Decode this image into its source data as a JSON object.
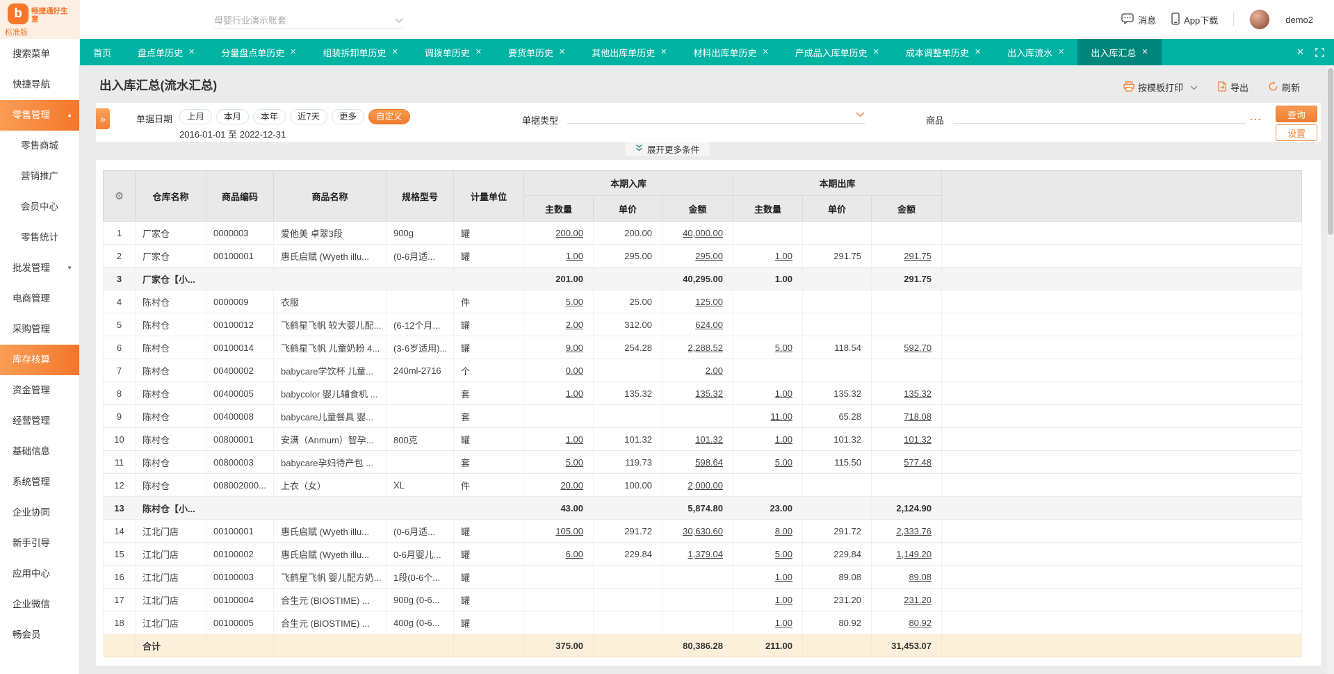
{
  "topbar": {
    "logo_title": "畅捷通好生意",
    "logo_badge": "标准版",
    "logo_letter": "b",
    "account_select_value": "母婴行业演示账套",
    "messages_label": "消息",
    "app_download_label": "App下载",
    "username": "demo2"
  },
  "tabs": [
    {
      "label": "首页",
      "closable": false,
      "active": false
    },
    {
      "label": "盘点单历史",
      "closable": true,
      "active": false
    },
    {
      "label": "分量盘点单历史",
      "closable": true,
      "active": false
    },
    {
      "label": "组装拆卸单历史",
      "closable": true,
      "active": false
    },
    {
      "label": "调拨单历史",
      "closable": true,
      "active": false
    },
    {
      "label": "要货单历史",
      "closable": true,
      "active": false
    },
    {
      "label": "其他出库单历史",
      "closable": true,
      "active": false
    },
    {
      "label": "材料出库单历史",
      "closable": true,
      "active": false
    },
    {
      "label": "产成品入库单历史",
      "closable": true,
      "active": false
    },
    {
      "label": "成本调整单历史",
      "closable": true,
      "active": false
    },
    {
      "label": "出入库流水",
      "closable": true,
      "active": false
    },
    {
      "label": "出入库汇总",
      "closable": true,
      "active": true
    }
  ],
  "sidebar": {
    "items": [
      {
        "label": "搜索菜单",
        "kind": "main"
      },
      {
        "label": "快捷导航",
        "kind": "main"
      },
      {
        "label": "零售管理",
        "kind": "expanded",
        "arrow": "up"
      },
      {
        "label": "零售商城",
        "kind": "sub"
      },
      {
        "label": "营销推广",
        "kind": "sub"
      },
      {
        "label": "会员中心",
        "kind": "sub"
      },
      {
        "label": "零售统计",
        "kind": "sub"
      },
      {
        "label": "批发管理",
        "kind": "main",
        "arrow": "down"
      },
      {
        "label": "电商管理",
        "kind": "main"
      },
      {
        "label": "采购管理",
        "kind": "main"
      },
      {
        "label": "库存核算",
        "kind": "active"
      },
      {
        "label": "资金管理",
        "kind": "main"
      },
      {
        "label": "经营管理",
        "kind": "main"
      },
      {
        "label": "基础信息",
        "kind": "main"
      },
      {
        "label": "系统管理",
        "kind": "main"
      },
      {
        "label": "企业协同",
        "kind": "main"
      },
      {
        "label": "新手引导",
        "kind": "main"
      },
      {
        "label": "应用中心",
        "kind": "main"
      },
      {
        "label": "企业微信",
        "kind": "main"
      },
      {
        "label": "畅会员",
        "kind": "main"
      }
    ]
  },
  "page": {
    "title": "出入库汇总(流水汇总)",
    "toolbar": {
      "print_label": "按模板打印",
      "export_label": "导出",
      "refresh_label": "刷新"
    }
  },
  "filters": {
    "date_label": "单据日期",
    "date_pills": [
      "上月",
      "本月",
      "本年",
      "近7天",
      "更多"
    ],
    "custom_pill": "自定义",
    "date_range": "2016-01-01 至 2022-12-31",
    "doc_type_label": "单据类型",
    "product_label": "商品",
    "more_dots": "...",
    "search_button": "查询",
    "settings_button": "设置",
    "expand_more": "展开更多条件"
  },
  "table": {
    "headers": [
      "仓库名称",
      "商品编码",
      "商品名称",
      "规格型号",
      "计量单位"
    ],
    "group_in": "本期入库",
    "group_out": "本期出库",
    "sub_headers": [
      "主数量",
      "单价",
      "金额"
    ],
    "rows": [
      {
        "n": "1",
        "warehouse": "厂家仓",
        "code": "0000003",
        "name": "爱他美 卓翠3段",
        "spec": "900g",
        "unit": "罐",
        "in": [
          "200.00",
          "200.00",
          "40,000.00"
        ],
        "out": [
          "",
          "",
          ""
        ],
        "kind": "data"
      },
      {
        "n": "2",
        "warehouse": "厂家仓",
        "code": "00100001",
        "name": "惠氏启赋 (Wyeth illu...",
        "spec": "(0-6月适...",
        "unit": "罐",
        "in": [
          "1.00",
          "295.00",
          "295.00"
        ],
        "out": [
          "1.00",
          "291.75",
          "291.75"
        ],
        "kind": "data"
      },
      {
        "n": "3",
        "warehouse": "厂家仓【小...",
        "code": "",
        "name": "",
        "spec": "",
        "unit": "",
        "in": [
          "201.00",
          "",
          "40,295.00"
        ],
        "out": [
          "1.00",
          "",
          "291.75"
        ],
        "kind": "summary"
      },
      {
        "n": "4",
        "warehouse": "陈村仓",
        "code": "0000009",
        "name": "衣服",
        "spec": "",
        "unit": "件",
        "in": [
          "5.00",
          "25.00",
          "125.00"
        ],
        "out": [
          "",
          "",
          ""
        ],
        "kind": "data"
      },
      {
        "n": "5",
        "warehouse": "陈村仓",
        "code": "00100012",
        "name": "飞鹤星飞帆 较大婴儿配...",
        "spec": "(6-12个月...",
        "unit": "罐",
        "in": [
          "2.00",
          "312.00",
          "624.00"
        ],
        "out": [
          "",
          "",
          ""
        ],
        "kind": "data"
      },
      {
        "n": "6",
        "warehouse": "陈村仓",
        "code": "00100014",
        "name": "飞鹤星飞帆 儿童奶粉 4...",
        "spec": "(3-6岁适用)...",
        "unit": "罐",
        "in": [
          "9.00",
          "254.28",
          "2,288.52"
        ],
        "out": [
          "5.00",
          "118.54",
          "592.70"
        ],
        "kind": "data"
      },
      {
        "n": "7",
        "warehouse": "陈村仓",
        "code": "00400002",
        "name": "babycare学饮杯 儿童...",
        "spec": "240ml-2716",
        "unit": "个",
        "in": [
          "0.00",
          "",
          "2.00"
        ],
        "out": [
          "",
          "",
          ""
        ],
        "kind": "data"
      },
      {
        "n": "8",
        "warehouse": "陈村仓",
        "code": "00400005",
        "name": "babycolor 婴儿辅食机 ...",
        "spec": "",
        "unit": "套",
        "in": [
          "1.00",
          "135.32",
          "135.32"
        ],
        "out": [
          "1.00",
          "135.32",
          "135.32"
        ],
        "kind": "data"
      },
      {
        "n": "9",
        "warehouse": "陈村仓",
        "code": "00400008",
        "name": "babycare儿童餐具 婴...",
        "spec": "",
        "unit": "套",
        "in": [
          "",
          "",
          ""
        ],
        "out": [
          "11.00",
          "65.28",
          "718.08"
        ],
        "kind": "data"
      },
      {
        "n": "10",
        "warehouse": "陈村仓",
        "code": "00800001",
        "name": "安满（Anmum）智孕...",
        "spec": "800克",
        "unit": "罐",
        "in": [
          "1.00",
          "101.32",
          "101.32"
        ],
        "out": [
          "1.00",
          "101.32",
          "101.32"
        ],
        "kind": "data"
      },
      {
        "n": "11",
        "warehouse": "陈村仓",
        "code": "00800003",
        "name": "babycare孕妇待产包 ...",
        "spec": "",
        "unit": "套",
        "in": [
          "5.00",
          "119.73",
          "598.64"
        ],
        "out": [
          "5.00",
          "115.50",
          "577.48"
        ],
        "kind": "data"
      },
      {
        "n": "12",
        "warehouse": "陈村仓",
        "code": "008002000...",
        "name": "上衣（女）",
        "spec": "XL",
        "unit": "件",
        "in": [
          "20.00",
          "100.00",
          "2,000.00"
        ],
        "out": [
          "",
          "",
          ""
        ],
        "kind": "data"
      },
      {
        "n": "13",
        "warehouse": "陈村仓【小...",
        "code": "",
        "name": "",
        "spec": "",
        "unit": "",
        "in": [
          "43.00",
          "",
          "5,874.80"
        ],
        "out": [
          "23.00",
          "",
          "2,124.90"
        ],
        "kind": "summary"
      },
      {
        "n": "14",
        "warehouse": "江北门店",
        "code": "00100001",
        "name": "惠氏启赋 (Wyeth illu...",
        "spec": "(0-6月适...",
        "unit": "罐",
        "in": [
          "105.00",
          "291.72",
          "30,630.60"
        ],
        "out": [
          "8.00",
          "291.72",
          "2,333.76"
        ],
        "kind": "data"
      },
      {
        "n": "15",
        "warehouse": "江北门店",
        "code": "00100002",
        "name": "惠氏启赋 (Wyeth illu...",
        "spec": "0-6月婴儿...",
        "unit": "罐",
        "in": [
          "6.00",
          "229.84",
          "1,379.04"
        ],
        "out": [
          "5.00",
          "229.84",
          "1,149.20"
        ],
        "kind": "data"
      },
      {
        "n": "16",
        "warehouse": "江北门店",
        "code": "00100003",
        "name": "飞鹤星飞帆 婴儿配方奶...",
        "spec": "1段(0-6个...",
        "unit": "罐",
        "in": [
          "",
          "",
          ""
        ],
        "out": [
          "1.00",
          "89.08",
          "89.08"
        ],
        "kind": "data"
      },
      {
        "n": "17",
        "warehouse": "江北门店",
        "code": "00100004",
        "name": "合生元 (BIOSTIME) ...",
        "spec": "900g (0-6...",
        "unit": "罐",
        "in": [
          "",
          "",
          ""
        ],
        "out": [
          "1.00",
          "231.20",
          "231.20"
        ],
        "kind": "data"
      },
      {
        "n": "18",
        "warehouse": "江北门店",
        "code": "00100005",
        "name": "合生元 (BIOSTIME) ...",
        "spec": "400g (0-6...",
        "unit": "罐",
        "in": [
          "",
          "",
          ""
        ],
        "out": [
          "1.00",
          "80.92",
          "80.92"
        ],
        "kind": "data"
      }
    ],
    "total": {
      "label": "合计",
      "in": [
        "375.00",
        "",
        "80,386.28"
      ],
      "out": [
        "211.00",
        "",
        "31,453.07"
      ]
    }
  },
  "colors": {
    "teal": "#00b3a3",
    "teal_active_tab": "#00877b",
    "orange_accent": "#f6823b",
    "logo_orange": "#f6762c",
    "total_row_bg": "#fcf0da",
    "header_bg": "#e9e9e9"
  }
}
